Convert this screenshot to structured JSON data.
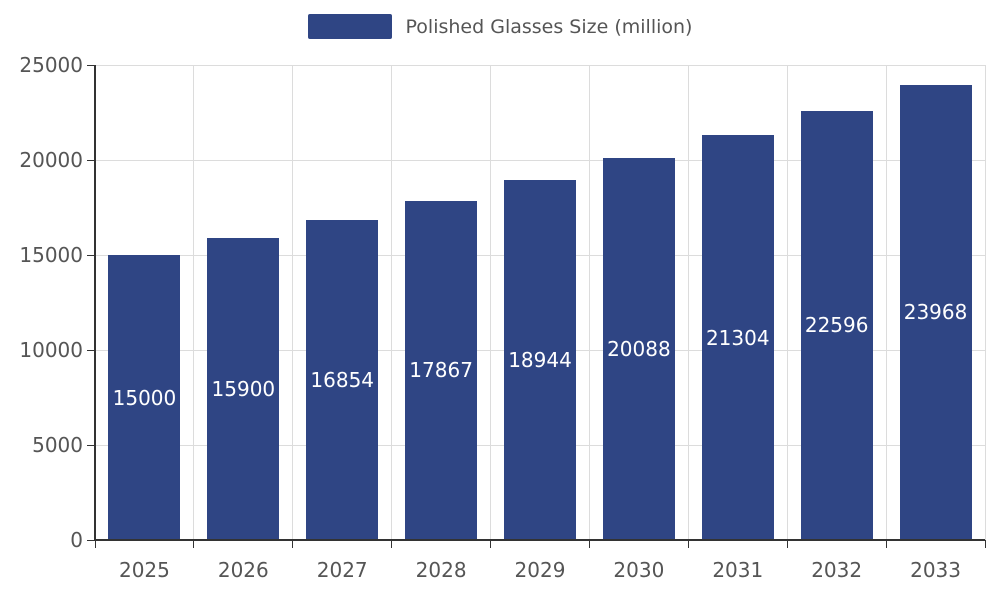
{
  "legend": {
    "label": "Polished Glasses Size (million)"
  },
  "chart_data": {
    "type": "bar",
    "title": "",
    "xlabel": "",
    "ylabel": "",
    "categories": [
      "2025",
      "2026",
      "2027",
      "2028",
      "2029",
      "2030",
      "2031",
      "2032",
      "2033"
    ],
    "series": [
      {
        "name": "Polished Glasses Size (million)",
        "values": [
          15000,
          15900,
          16854,
          17867,
          18944,
          20088,
          21304,
          22596,
          23968
        ]
      }
    ],
    "ylim": [
      0,
      25000
    ],
    "yticks": [
      0,
      5000,
      10000,
      15000,
      20000,
      25000
    ],
    "grid": true,
    "legend_position": "top",
    "bar_color": "#2f4584",
    "value_label_color": "#ffffff",
    "axis_color": "#333333",
    "grid_color": "#dcdcdc",
    "tick_label_color": "#555555"
  }
}
